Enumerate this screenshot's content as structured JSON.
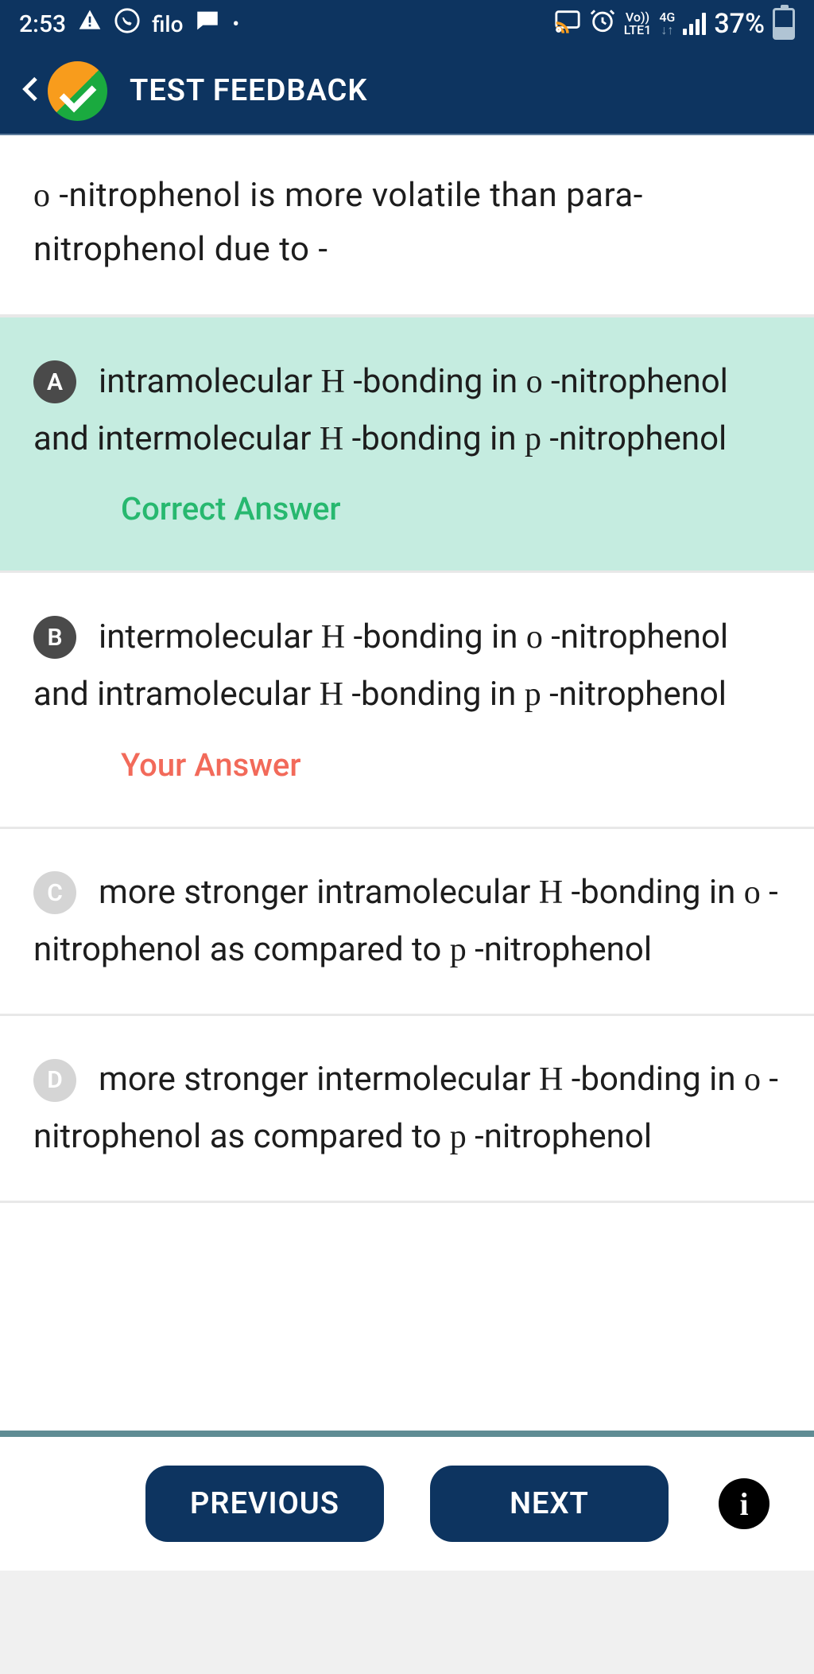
{
  "status": {
    "time": "2:53",
    "app_label": "filo",
    "lte_top": "Vo))",
    "lte_bottom": "LTE1",
    "net": "4G",
    "arrows": "↓↑",
    "battery": "37%"
  },
  "header": {
    "title": "TEST FEEDBACK"
  },
  "question": {
    "prefix": "o",
    "text_after_prefix": " -nitrophenol is more volatile than para-nitrophenol due to -"
  },
  "options": [
    {
      "letter": "A",
      "faded": false,
      "parts": [
        "intramolecular ",
        "H",
        " -bonding in ",
        "o",
        " -nitrophenol and intermolecular ",
        "H",
        " -bonding in ",
        "p",
        " -nitrophenol"
      ],
      "correct": true,
      "feedback": "Correct Answer",
      "feedback_type": "correct-lbl"
    },
    {
      "letter": "B",
      "faded": false,
      "parts": [
        "intermolecular ",
        "H",
        " -bonding in ",
        "o",
        " -nitrophenol and intramolecular ",
        "H",
        " -bonding in ",
        "p",
        " -nitrophenol"
      ],
      "correct": false,
      "feedback": "Your Answer",
      "feedback_type": "wrong-lbl"
    },
    {
      "letter": "C",
      "faded": true,
      "parts": [
        "more stronger intramolecular ",
        "H",
        " -bonding in ",
        "o",
        " -nitrophenol as compared to ",
        "p",
        " -nitrophenol"
      ],
      "correct": false,
      "feedback": null,
      "feedback_type": null
    },
    {
      "letter": "D",
      "faded": true,
      "parts": [
        "more stronger intermolecular ",
        "H",
        " -bonding in ",
        "o",
        " -nitrophenol as compared to ",
        "p",
        " -nitrophenol"
      ],
      "correct": false,
      "feedback": null,
      "feedback_type": null
    }
  ],
  "actions": {
    "previous": "PREVIOUS",
    "next": "NEXT",
    "info": "i"
  },
  "colors": {
    "primary": "#0d3460",
    "correct_bg": "#c5ece0",
    "correct_text": "#27b86f",
    "wrong_text": "#f26a5a"
  }
}
